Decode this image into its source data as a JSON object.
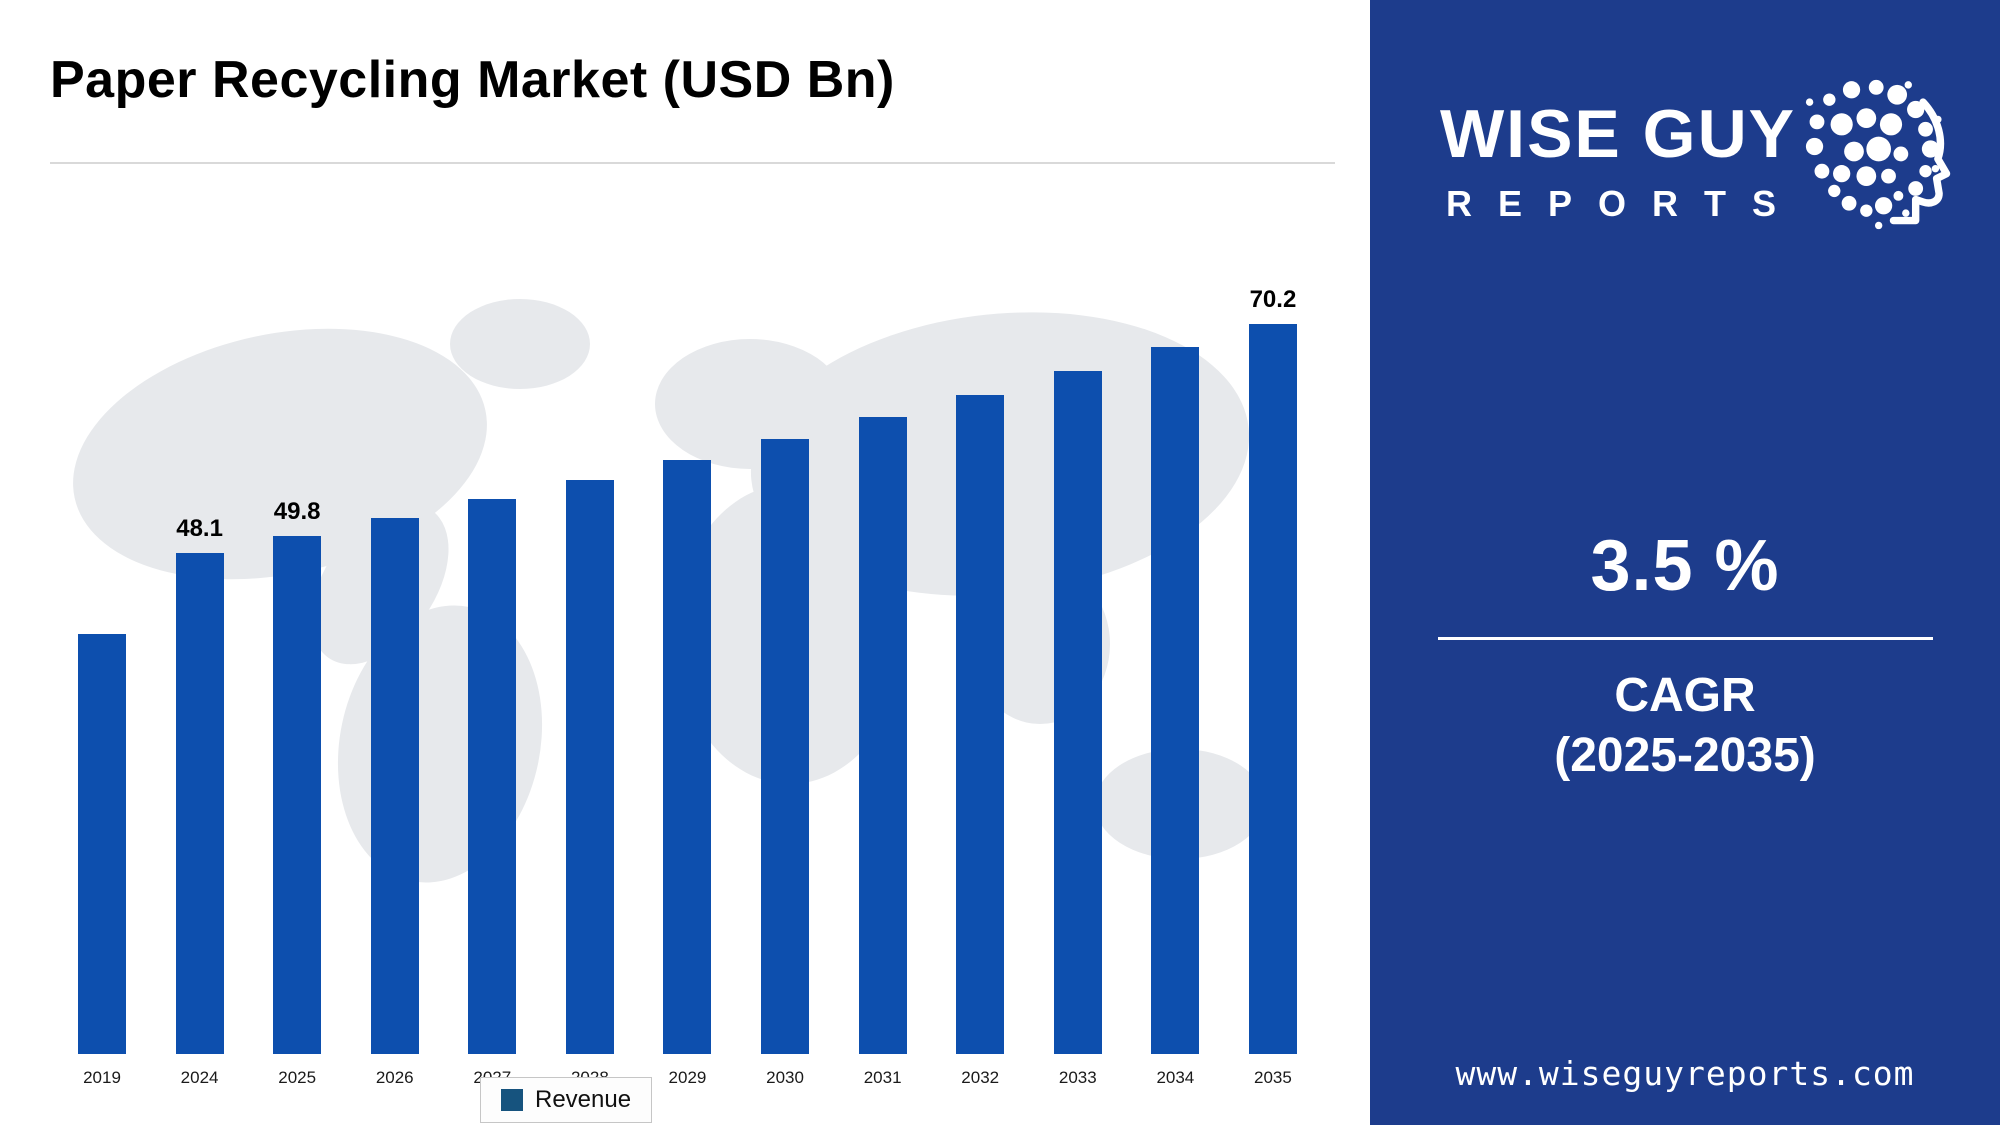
{
  "page_title": "Paper Recycling Market (USD Bn)",
  "chart_data": {
    "type": "bar",
    "title": "Paper Recycling Market (USD Bn)",
    "categories": [
      "2019",
      "2024",
      "2025",
      "2026",
      "2027",
      "2028",
      "2029",
      "2030",
      "2031",
      "2032",
      "2033",
      "2034",
      "2035"
    ],
    "series": [
      {
        "name": "Revenue",
        "values": [
          40.4,
          48.1,
          49.8,
          51.5,
          53.3,
          55.2,
          57.1,
          59.1,
          61.2,
          63.3,
          65.6,
          67.9,
          70.2
        ]
      }
    ],
    "value_labels": [
      "",
      "48.1",
      "49.8",
      "",
      "",
      "",
      "",
      "",
      "",
      "",
      "",
      "",
      "70.2"
    ],
    "xlabel": "",
    "ylabel": "",
    "ylim": [
      0,
      74
    ],
    "grid": false,
    "bar_color": "#0d4fae",
    "legend": {
      "position": "bottom",
      "entries": [
        {
          "label": "Revenue",
          "color": "#16537e"
        }
      ]
    }
  },
  "side_panel": {
    "background_color": "#1d3c8c",
    "logo_line1": "WISE GUY",
    "logo_line2": "REPORTS",
    "cagr_value": "3.5 %",
    "cagr_label": "CAGR",
    "cagr_range": "(2025-2035)",
    "website": "www.wiseguyreports.com"
  }
}
